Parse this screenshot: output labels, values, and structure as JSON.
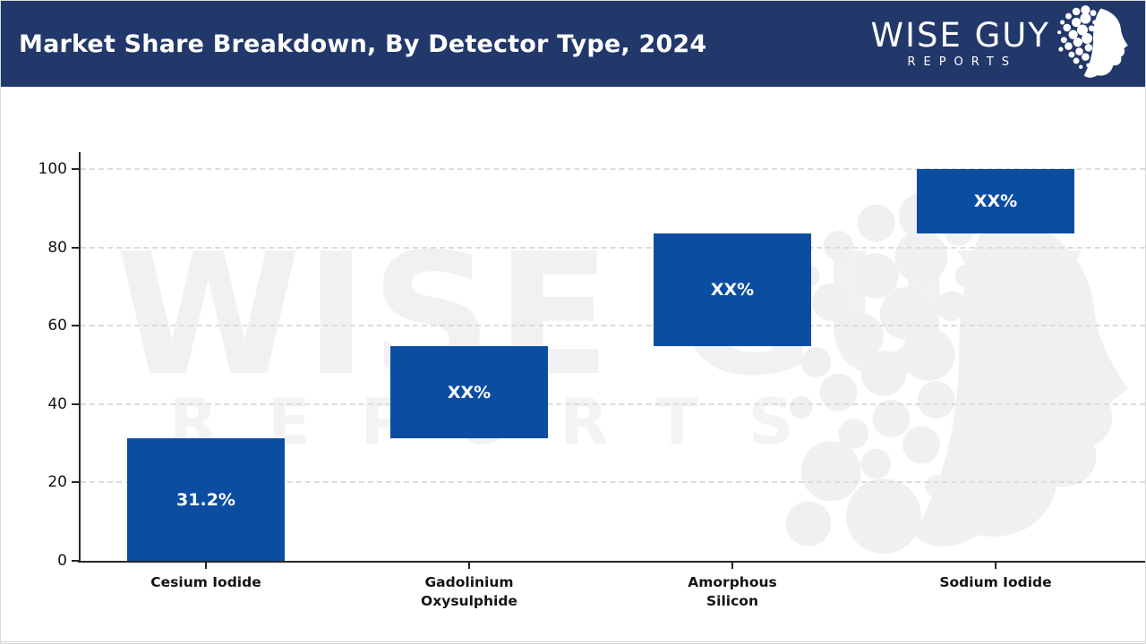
{
  "header": {
    "title": "Market Share Breakdown, By Detector Type, 2024",
    "logo": {
      "line1": "WISE GUY",
      "line2": "REPORTS"
    }
  },
  "watermark": {
    "line1": "WISE GUY",
    "line2": "REPORTS"
  },
  "chart_data": {
    "type": "bar",
    "subtype": "waterfall",
    "title": "Market Share Breakdown, By Detector Type, 2024",
    "categories": [
      "Cesium Iodide",
      "Gadolinium\nOxysulphide",
      "Amorphous Silicon",
      "Sodium Iodide"
    ],
    "series": [
      {
        "name": "Market Share",
        "segments": [
          {
            "category": "Cesium Iodide",
            "start": 0,
            "end": 31.2,
            "label": "31.2%"
          },
          {
            "category": "Gadolinium Oxysulphide",
            "start": 31.2,
            "end": 54.8,
            "label": "XX%"
          },
          {
            "category": "Amorphous Silicon",
            "start": 54.8,
            "end": 83.5,
            "label": "XX%"
          },
          {
            "category": "Sodium Iodide",
            "start": 83.5,
            "end": 100,
            "label": "XX%"
          }
        ]
      }
    ],
    "xlabel": "",
    "ylabel": "",
    "ylim": [
      0,
      100
    ],
    "yticks": [
      0,
      20,
      40,
      60,
      80,
      100
    ],
    "grid": "horizontal-dashed",
    "legend": "none",
    "colors": {
      "bar": "#0b4da1",
      "bar_label": "#ffffff",
      "header_bg": "#22386a",
      "axis": "#262626",
      "gridline": "#dcdcdc",
      "watermark": "#f1f1f3"
    }
  }
}
